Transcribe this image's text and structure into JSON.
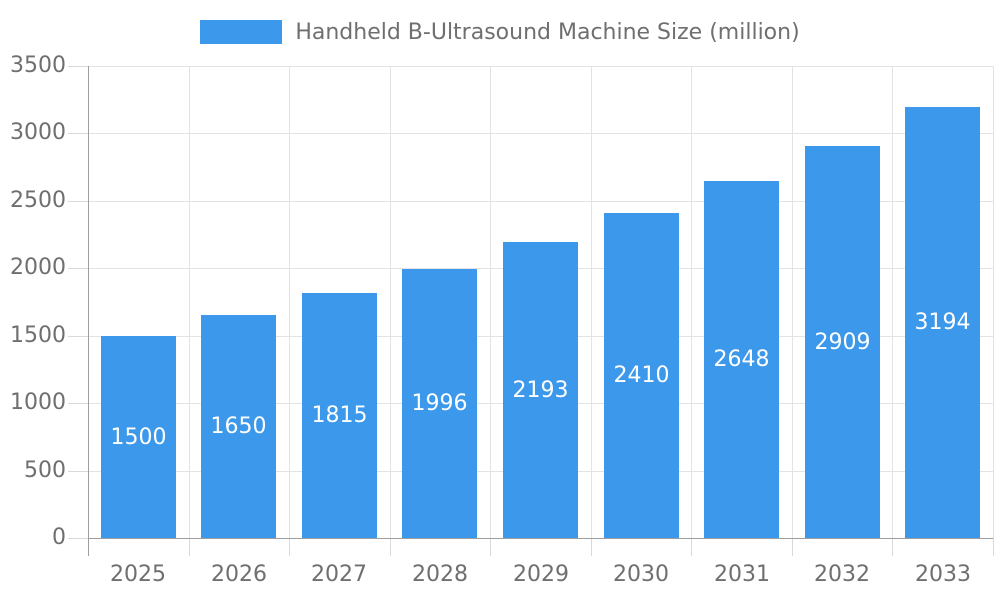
{
  "chart_data": {
    "type": "bar",
    "title": "Handheld B-Ultrasound Machine Size (million)",
    "categories": [
      "2025",
      "2026",
      "2027",
      "2028",
      "2029",
      "2030",
      "2031",
      "2032",
      "2033"
    ],
    "values": [
      1500,
      1650,
      1815,
      1996,
      2193,
      2410,
      2648,
      2909,
      3194
    ],
    "xlabel": "",
    "ylabel": "",
    "ylim": [
      0,
      3500
    ],
    "yticks": [
      0,
      500,
      1000,
      1500,
      2000,
      2500,
      3000,
      3500
    ],
    "grid": true,
    "legend_position": "top",
    "colors": {
      "bar": "#3B98EB",
      "bar_value_label": "#FFFFFF",
      "grid": "#E3E3E3",
      "axis": "#9E9E9E",
      "tick": "#D9D9D9",
      "tick_label": "#6F6F6F",
      "legend_text": "#6F6F6F",
      "background": "#FFFFFF"
    }
  }
}
